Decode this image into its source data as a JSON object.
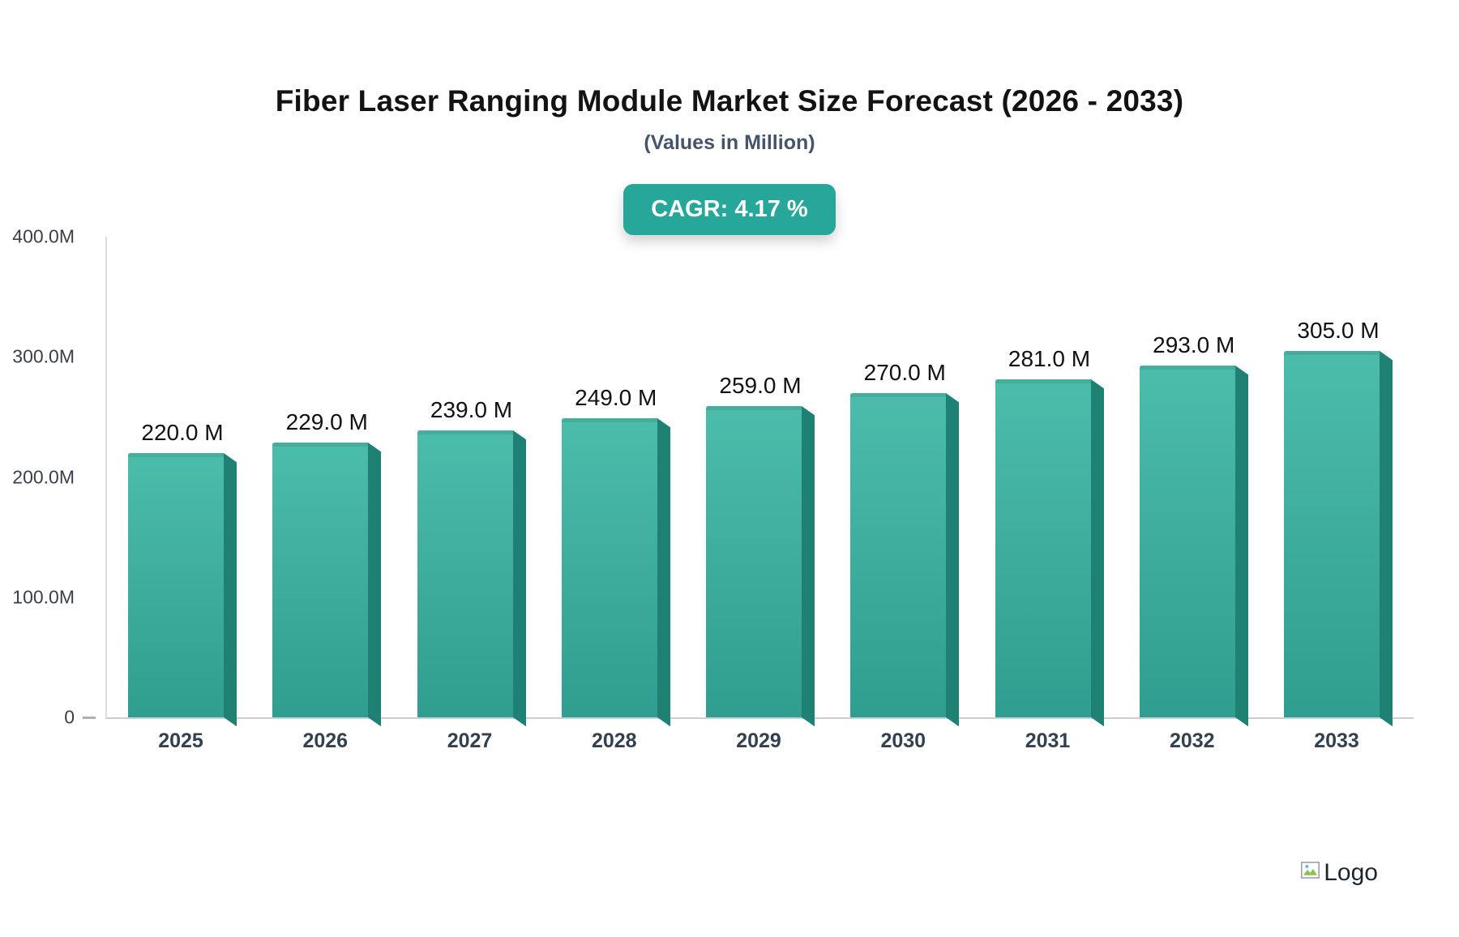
{
  "header": {
    "title": "Fiber Laser Ranging Module Market Size Forecast (2026 - 2033)",
    "subtitle": "(Values in Million)",
    "cagr_badge": "CAGR: 4.17 %"
  },
  "footer": {
    "logo_text": "Logo"
  },
  "theme": {
    "accent": "#27a79a",
    "bar_top": "#4cbcab",
    "bar_bottom": "#2f9e90",
    "bar_side": "#1f8174"
  },
  "chart_data": {
    "type": "bar",
    "title": "Fiber Laser Ranging Module Market Size Forecast (2026 - 2033)",
    "subtitle": "(Values in Million)",
    "unit": "Million",
    "cagr_annotation": "CAGR: 4.17 %",
    "categories": [
      "2025",
      "2026",
      "2027",
      "2028",
      "2029",
      "2030",
      "2031",
      "2032",
      "2033"
    ],
    "values": [
      220.0,
      229.0,
      239.0,
      249.0,
      259.0,
      270.0,
      281.0,
      293.0,
      305.0
    ],
    "value_labels": [
      "220.0 M",
      "229.0 M",
      "239.0 M",
      "249.0 M",
      "259.0 M",
      "270.0 M",
      "281.0 M",
      "293.0 M",
      "305.0 M"
    ],
    "xlabel": "",
    "ylabel": "",
    "ylim": [
      0,
      400
    ],
    "yticks": [
      {
        "value": 0,
        "label": "0"
      },
      {
        "value": 100,
        "label": "100.0M"
      },
      {
        "value": 200,
        "label": "200.0M"
      },
      {
        "value": 300,
        "label": "300.0M"
      },
      {
        "value": 400,
        "label": "400.0M"
      }
    ],
    "grid": "off",
    "legend": "none"
  }
}
